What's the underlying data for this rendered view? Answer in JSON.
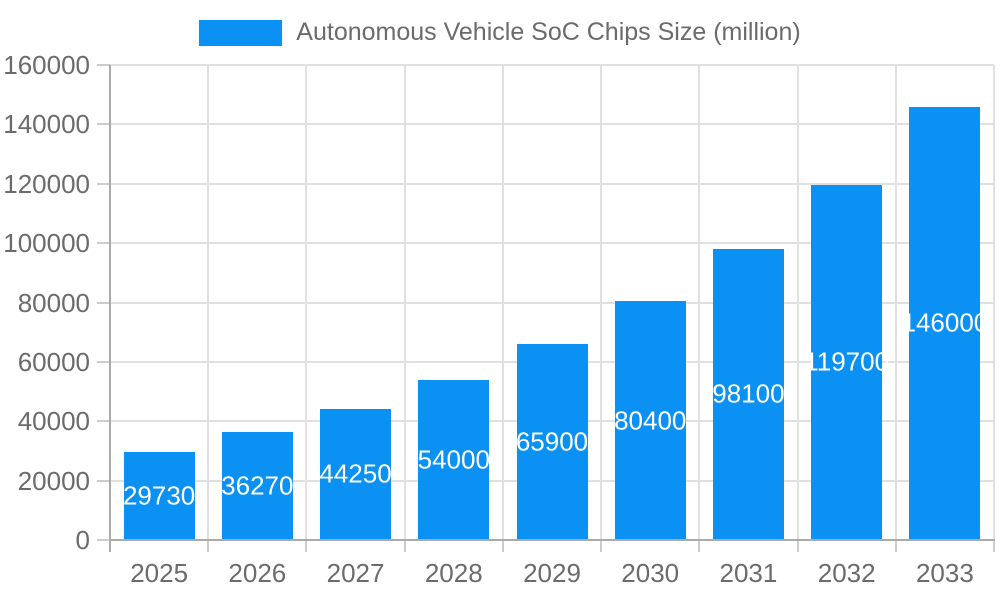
{
  "chart_data": {
    "type": "bar",
    "title": "Autonomous Vehicle SoC Chips Size (million)",
    "categories": [
      "2025",
      "2026",
      "2027",
      "2028",
      "2029",
      "2030",
      "2031",
      "2032",
      "2033"
    ],
    "values": [
      29730,
      36270,
      44250,
      54000,
      65900,
      80400,
      98100,
      119700,
      146000
    ],
    "xlabel": "",
    "ylabel": "",
    "ylim": [
      0,
      160000
    ],
    "ytick_step": 20000,
    "yticks": [
      0,
      20000,
      40000,
      60000,
      80000,
      100000,
      120000,
      140000,
      160000
    ],
    "grid": true,
    "legend_position": "top",
    "bar_value_labels": [
      "29730",
      "36270",
      "44250",
      "54000",
      "65900",
      "80400",
      "98100",
      "119700",
      "146000"
    ]
  },
  "legend": {
    "label": "Autonomous Vehicle SoC Chips Size (million)"
  },
  "colors": {
    "bar": "#0A91F3",
    "bar_label": "#FFFFFF",
    "grid": "#E0E0E0",
    "tick": "#CCCCCC",
    "axis": "#AAAAAA",
    "text": "#6B6B6B",
    "background": "#FFFFFF"
  }
}
